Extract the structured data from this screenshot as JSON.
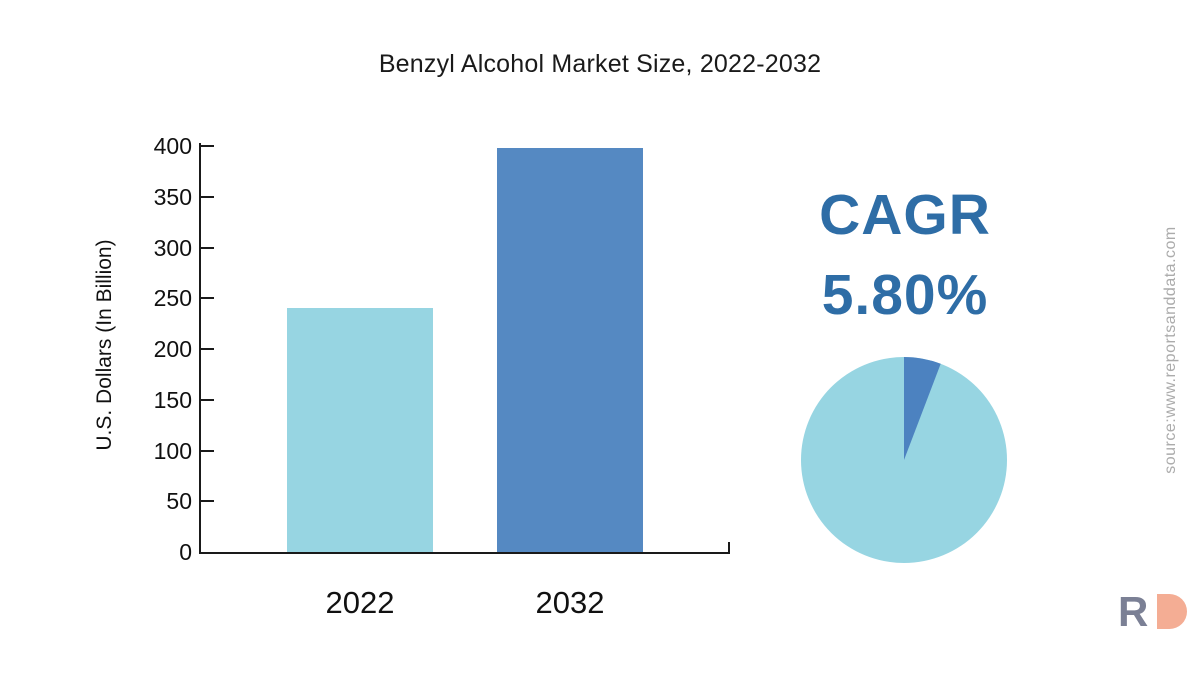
{
  "title": "Benzyl Alcohol Market Size, 2022-2032",
  "chart_data": [
    {
      "type": "bar",
      "title": "Benzyl Alcohol Market Size, 2022-2032",
      "categories": [
        "2022",
        "2032"
      ],
      "values": [
        240,
        398
      ],
      "bar_colors": [
        "#97D5E2",
        "#5589C2"
      ],
      "xlabel": "",
      "ylabel": "U.S. Dollars (In Billion)",
      "ylim": [
        0,
        400
      ],
      "yticks": [
        0,
        50,
        100,
        150,
        200,
        250,
        300,
        350,
        400
      ],
      "grid": false,
      "legend": "none"
    },
    {
      "type": "pie",
      "labels": [
        "CAGR slice",
        "remainder"
      ],
      "values": [
        5.8,
        94.2
      ],
      "colors": [
        "#4C82C0",
        "#97D5E2"
      ],
      "start_angle_deg": 0,
      "direction": "clockwise"
    }
  ],
  "cagr": {
    "label": "CAGR",
    "value": "5.80%",
    "percent": 5.8,
    "text_color": "#2E6DA6"
  },
  "source": {
    "text": "source:www.reportsanddata.com"
  },
  "logo": {
    "letter": "R",
    "r_color": "#7B8095",
    "d_color": "#F4AD94"
  }
}
